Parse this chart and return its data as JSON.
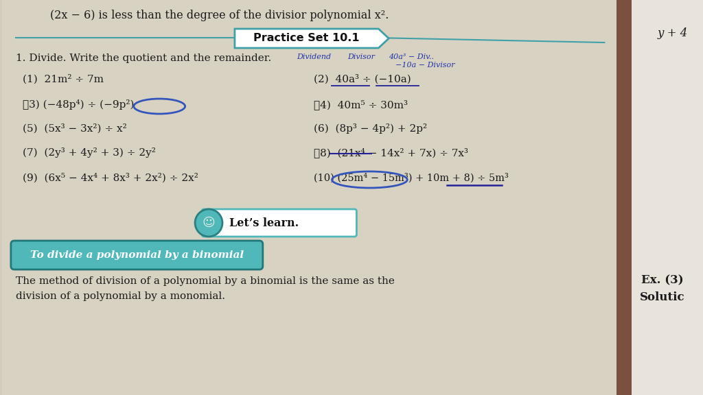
{
  "left_page_bg": "#d4cbbe",
  "right_page_bg": "#e8e4dc",
  "spine_color": "#7a5040",
  "top_text": "(2x − 6) is less than the degree of the divisior polynomial x².",
  "top_right_text": "y + 4",
  "section_title": "Practice Set 10.1",
  "instruction": "1. Divide. Write the quotient and the remainder.",
  "section_title_bg": "#40a0a8",
  "section_title_text": "#ffffff",
  "line_color": "#40a0a8",
  "to_divide_bg": "#50b8b8",
  "lets_learn_bg": "#50b8b8",
  "text_color": "#1a1a1a",
  "handwriting_color": "#2233aa",
  "lets_learn_text": "Let’s learn.",
  "to_divide_text": "To divide a polynomial by a binomial",
  "body_line1": "The method of division of a polynomial by a binomial is the same as the",
  "body_line2": "division of a polynomial by a monomial.",
  "ex_text": "Ex. (3)",
  "sol_text": "Solutic"
}
